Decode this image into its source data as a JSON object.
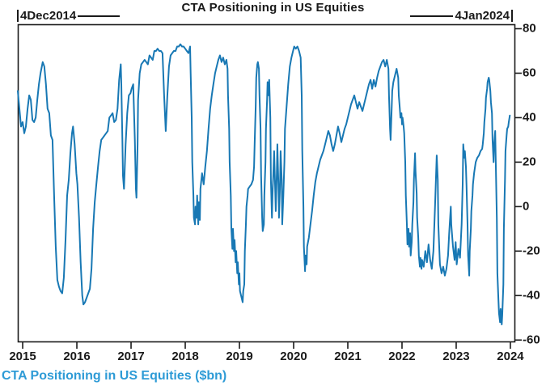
{
  "chart_data": {
    "type": "line",
    "title": "CTA Positioning in US Equities",
    "caption": "CTA Positioning in US Equities ($bn)",
    "series_name": "CTA Positioning in US Equities ($bn)",
    "unit": "$bn",
    "annotations": {
      "start": "4Dec2014",
      "end": "4Jan2024"
    },
    "x_ticks": [
      2015,
      2016,
      2017,
      2018,
      2019,
      2020,
      2021,
      2022,
      2023,
      2024
    ],
    "y_ticks": [
      80,
      60,
      40,
      20,
      0,
      -20,
      -40,
      -60
    ],
    "xlim": [
      2014.91,
      2024.09
    ],
    "ylim": [
      -61,
      82
    ],
    "grid": false,
    "legend": "none",
    "line_color": "#1878b4",
    "caption_color": "#2e9bd6",
    "axis_color": "#1a1a1a",
    "points": [
      [
        2014.91,
        52
      ],
      [
        2014.94,
        44
      ],
      [
        2014.97,
        36
      ],
      [
        2015.0,
        38
      ],
      [
        2015.03,
        33
      ],
      [
        2015.06,
        36
      ],
      [
        2015.09,
        44
      ],
      [
        2015.12,
        50
      ],
      [
        2015.15,
        48
      ],
      [
        2015.18,
        39
      ],
      [
        2015.21,
        38
      ],
      [
        2015.24,
        40
      ],
      [
        2015.27,
        48
      ],
      [
        2015.3,
        55
      ],
      [
        2015.33,
        60
      ],
      [
        2015.37,
        65
      ],
      [
        2015.4,
        63
      ],
      [
        2015.43,
        55
      ],
      [
        2015.46,
        44
      ],
      [
        2015.49,
        42
      ],
      [
        2015.52,
        32
      ],
      [
        2015.55,
        30
      ],
      [
        2015.58,
        5
      ],
      [
        2015.61,
        -18
      ],
      [
        2015.64,
        -33
      ],
      [
        2015.67,
        -36
      ],
      [
        2015.7,
        -38
      ],
      [
        2015.73,
        -39
      ],
      [
        2015.76,
        -32
      ],
      [
        2015.79,
        -15
      ],
      [
        2015.82,
        5
      ],
      [
        2015.85,
        12
      ],
      [
        2015.88,
        24
      ],
      [
        2015.91,
        33
      ],
      [
        2015.93,
        36
      ],
      [
        2015.96,
        28
      ],
      [
        2015.99,
        15
      ],
      [
        2016.01,
        10
      ],
      [
        2016.04,
        -5
      ],
      [
        2016.07,
        -25
      ],
      [
        2016.1,
        -40
      ],
      [
        2016.12,
        -44
      ],
      [
        2016.15,
        -43
      ],
      [
        2016.18,
        -41
      ],
      [
        2016.21,
        -39
      ],
      [
        2016.24,
        -37
      ],
      [
        2016.27,
        -28
      ],
      [
        2016.3,
        -10
      ],
      [
        2016.33,
        2
      ],
      [
        2016.36,
        10
      ],
      [
        2016.39,
        18
      ],
      [
        2016.42,
        25
      ],
      [
        2016.45,
        30
      ],
      [
        2016.48,
        31
      ],
      [
        2016.51,
        32
      ],
      [
        2016.54,
        33
      ],
      [
        2016.57,
        34
      ],
      [
        2016.6,
        40
      ],
      [
        2016.63,
        41
      ],
      [
        2016.66,
        42
      ],
      [
        2016.69,
        38
      ],
      [
        2016.72,
        39
      ],
      [
        2016.75,
        44
      ],
      [
        2016.78,
        57
      ],
      [
        2016.81,
        64
      ],
      [
        2016.82,
        55
      ],
      [
        2016.84,
        30
      ],
      [
        2016.85,
        14
      ],
      [
        2016.87,
        8
      ],
      [
        2016.9,
        28
      ],
      [
        2016.93,
        42
      ],
      [
        2016.96,
        50
      ],
      [
        2016.99,
        51
      ],
      [
        2017.01,
        53
      ],
      [
        2017.04,
        55
      ],
      [
        2017.07,
        30
      ],
      [
        2017.09,
        8
      ],
      [
        2017.1,
        4
      ],
      [
        2017.12,
        28
      ],
      [
        2017.13,
        48
      ],
      [
        2017.16,
        60
      ],
      [
        2017.19,
        64
      ],
      [
        2017.22,
        65
      ],
      [
        2017.25,
        66
      ],
      [
        2017.28,
        65
      ],
      [
        2017.31,
        64
      ],
      [
        2017.34,
        68
      ],
      [
        2017.37,
        67
      ],
      [
        2017.4,
        66
      ],
      [
        2017.43,
        70
      ],
      [
        2017.46,
        70
      ],
      [
        2017.49,
        71
      ],
      [
        2017.52,
        70
      ],
      [
        2017.55,
        70
      ],
      [
        2017.58,
        69
      ],
      [
        2017.61,
        50
      ],
      [
        2017.64,
        34
      ],
      [
        2017.67,
        50
      ],
      [
        2017.7,
        63
      ],
      [
        2017.73,
        68
      ],
      [
        2017.76,
        69
      ],
      [
        2017.79,
        70
      ],
      [
        2017.82,
        70
      ],
      [
        2017.85,
        72
      ],
      [
        2017.88,
        72
      ],
      [
        2017.91,
        73
      ],
      [
        2017.94,
        72
      ],
      [
        2017.97,
        72
      ],
      [
        2018.0,
        71
      ],
      [
        2018.03,
        70
      ],
      [
        2018.06,
        69
      ],
      [
        2018.09,
        72
      ],
      [
        2018.1,
        60
      ],
      [
        2018.12,
        40
      ],
      [
        2018.13,
        20
      ],
      [
        2018.15,
        5
      ],
      [
        2018.16,
        -5
      ],
      [
        2018.18,
        -8
      ],
      [
        2018.19,
        0
      ],
      [
        2018.21,
        -5
      ],
      [
        2018.22,
        5
      ],
      [
        2018.24,
        -8
      ],
      [
        2018.25,
        2
      ],
      [
        2018.27,
        -6
      ],
      [
        2018.28,
        8
      ],
      [
        2018.31,
        15
      ],
      [
        2018.34,
        10
      ],
      [
        2018.37,
        18
      ],
      [
        2018.4,
        25
      ],
      [
        2018.43,
        35
      ],
      [
        2018.46,
        44
      ],
      [
        2018.49,
        50
      ],
      [
        2018.52,
        55
      ],
      [
        2018.55,
        60
      ],
      [
        2018.58,
        63
      ],
      [
        2018.61,
        66
      ],
      [
        2018.64,
        68
      ],
      [
        2018.67,
        65
      ],
      [
        2018.7,
        67
      ],
      [
        2018.73,
        64
      ],
      [
        2018.76,
        66
      ],
      [
        2018.78,
        62
      ],
      [
        2018.79,
        50
      ],
      [
        2018.81,
        35
      ],
      [
        2018.82,
        20
      ],
      [
        2018.84,
        5
      ],
      [
        2018.85,
        -10
      ],
      [
        2018.87,
        -19
      ],
      [
        2018.88,
        -10
      ],
      [
        2018.9,
        -20
      ],
      [
        2018.91,
        -15
      ],
      [
        2018.93,
        -25
      ],
      [
        2018.94,
        -20
      ],
      [
        2018.96,
        -30
      ],
      [
        2018.97,
        -25
      ],
      [
        2018.99,
        -35
      ],
      [
        2019.0,
        -30
      ],
      [
        2019.01,
        -38
      ],
      [
        2019.04,
        -41
      ],
      [
        2019.06,
        -43
      ],
      [
        2019.07,
        -38
      ],
      [
        2019.09,
        -35
      ],
      [
        2019.1,
        -20
      ],
      [
        2019.12,
        -8
      ],
      [
        2019.13,
        0
      ],
      [
        2019.15,
        5
      ],
      [
        2019.16,
        8
      ],
      [
        2019.19,
        9
      ],
      [
        2019.22,
        10
      ],
      [
        2019.25,
        12
      ],
      [
        2019.27,
        18
      ],
      [
        2019.28,
        28
      ],
      [
        2019.3,
        45
      ],
      [
        2019.31,
        58
      ],
      [
        2019.33,
        64
      ],
      [
        2019.34,
        65
      ],
      [
        2019.36,
        62
      ],
      [
        2019.37,
        50
      ],
      [
        2019.39,
        35
      ],
      [
        2019.4,
        14
      ],
      [
        2019.42,
        -5
      ],
      [
        2019.43,
        -11
      ],
      [
        2019.45,
        -8
      ],
      [
        2019.46,
        5
      ],
      [
        2019.48,
        20
      ],
      [
        2019.49,
        35
      ],
      [
        2019.51,
        48
      ],
      [
        2019.52,
        56
      ],
      [
        2019.54,
        50
      ],
      [
        2019.55,
        57
      ],
      [
        2019.57,
        40
      ],
      [
        2019.58,
        12
      ],
      [
        2019.6,
        -5
      ],
      [
        2019.61,
        5
      ],
      [
        2019.63,
        18
      ],
      [
        2019.64,
        25
      ],
      [
        2019.66,
        8
      ],
      [
        2019.67,
        -2
      ],
      [
        2019.69,
        15
      ],
      [
        2019.7,
        28
      ],
      [
        2019.72,
        10
      ],
      [
        2019.73,
        -5
      ],
      [
        2019.75,
        10
      ],
      [
        2019.76,
        25
      ],
      [
        2019.78,
        12
      ],
      [
        2019.79,
        -8
      ],
      [
        2019.81,
        5
      ],
      [
        2019.83,
        20
      ],
      [
        2019.84,
        35
      ],
      [
        2019.87,
        45
      ],
      [
        2019.9,
        55
      ],
      [
        2019.93,
        63
      ],
      [
        2019.96,
        67
      ],
      [
        2019.99,
        70
      ],
      [
        2020.01,
        72
      ],
      [
        2020.04,
        71
      ],
      [
        2020.07,
        72
      ],
      [
        2020.1,
        70
      ],
      [
        2020.13,
        67
      ],
      [
        2020.15,
        50
      ],
      [
        2020.16,
        25
      ],
      [
        2020.18,
        0
      ],
      [
        2020.19,
        -18
      ],
      [
        2020.21,
        -29
      ],
      [
        2020.22,
        -22
      ],
      [
        2020.24,
        -26
      ],
      [
        2020.25,
        -18
      ],
      [
        2020.28,
        -14
      ],
      [
        2020.31,
        -8
      ],
      [
        2020.34,
        -2
      ],
      [
        2020.37,
        5
      ],
      [
        2020.4,
        11
      ],
      [
        2020.43,
        15
      ],
      [
        2020.46,
        18
      ],
      [
        2020.49,
        21
      ],
      [
        2020.52,
        23
      ],
      [
        2020.55,
        25
      ],
      [
        2020.58,
        28
      ],
      [
        2020.61,
        31
      ],
      [
        2020.64,
        34
      ],
      [
        2020.67,
        32
      ],
      [
        2020.7,
        28
      ],
      [
        2020.73,
        25
      ],
      [
        2020.76,
        28
      ],
      [
        2020.79,
        32
      ],
      [
        2020.82,
        36
      ],
      [
        2020.85,
        33
      ],
      [
        2020.88,
        29
      ],
      [
        2020.91,
        32
      ],
      [
        2020.94,
        35
      ],
      [
        2020.97,
        37
      ],
      [
        2021.0,
        40
      ],
      [
        2021.03,
        43
      ],
      [
        2021.06,
        46
      ],
      [
        2021.09,
        48
      ],
      [
        2021.12,
        50
      ],
      [
        2021.15,
        47
      ],
      [
        2021.18,
        44
      ],
      [
        2021.21,
        47
      ],
      [
        2021.24,
        45
      ],
      [
        2021.27,
        43
      ],
      [
        2021.3,
        46
      ],
      [
        2021.33,
        49
      ],
      [
        2021.36,
        52
      ],
      [
        2021.39,
        55
      ],
      [
        2021.42,
        57
      ],
      [
        2021.45,
        53
      ],
      [
        2021.48,
        57
      ],
      [
        2021.51,
        54
      ],
      [
        2021.54,
        58
      ],
      [
        2021.57,
        61
      ],
      [
        2021.6,
        63
      ],
      [
        2021.63,
        65
      ],
      [
        2021.66,
        66
      ],
      [
        2021.69,
        63
      ],
      [
        2021.72,
        66
      ],
      [
        2021.75,
        62
      ],
      [
        2021.76,
        50
      ],
      [
        2021.78,
        35
      ],
      [
        2021.79,
        30
      ],
      [
        2021.81,
        45
      ],
      [
        2021.82,
        52
      ],
      [
        2021.84,
        56
      ],
      [
        2021.87,
        59
      ],
      [
        2021.9,
        62
      ],
      [
        2021.93,
        58
      ],
      [
        2021.94,
        50
      ],
      [
        2021.96,
        44
      ],
      [
        2021.97,
        40
      ],
      [
        2021.99,
        42
      ],
      [
        2022.0,
        37
      ],
      [
        2022.01,
        40
      ],
      [
        2022.03,
        36
      ],
      [
        2022.04,
        33
      ],
      [
        2022.06,
        20
      ],
      [
        2022.07,
        5
      ],
      [
        2022.09,
        -8
      ],
      [
        2022.1,
        -17
      ],
      [
        2022.12,
        -10
      ],
      [
        2022.13,
        -18
      ],
      [
        2022.15,
        -12
      ],
      [
        2022.16,
        -22
      ],
      [
        2022.18,
        -16
      ],
      [
        2022.19,
        -8
      ],
      [
        2022.21,
        2
      ],
      [
        2022.22,
        12
      ],
      [
        2022.24,
        24
      ],
      [
        2022.25,
        16
      ],
      [
        2022.27,
        6
      ],
      [
        2022.28,
        -5
      ],
      [
        2022.3,
        -14
      ],
      [
        2022.31,
        -22
      ],
      [
        2022.33,
        -27
      ],
      [
        2022.34,
        -23
      ],
      [
        2022.36,
        -28
      ],
      [
        2022.37,
        -24
      ],
      [
        2022.4,
        -27
      ],
      [
        2022.43,
        -20
      ],
      [
        2022.46,
        -25
      ],
      [
        2022.49,
        -17
      ],
      [
        2022.52,
        -24
      ],
      [
        2022.55,
        -28
      ],
      [
        2022.58,
        -20
      ],
      [
        2022.61,
        0
      ],
      [
        2022.64,
        23
      ],
      [
        2022.66,
        12
      ],
      [
        2022.67,
        -8
      ],
      [
        2022.69,
        -20
      ],
      [
        2022.7,
        -26
      ],
      [
        2022.73,
        -30
      ],
      [
        2022.76,
        -27
      ],
      [
        2022.79,
        -31
      ],
      [
        2022.82,
        -28
      ],
      [
        2022.85,
        -22
      ],
      [
        2022.87,
        -12
      ],
      [
        2022.9,
        0
      ],
      [
        2022.91,
        -8
      ],
      [
        2022.94,
        -18
      ],
      [
        2022.97,
        -24
      ],
      [
        2022.99,
        -16
      ],
      [
        2023.01,
        -26
      ],
      [
        2023.04,
        -19
      ],
      [
        2023.07,
        -23
      ],
      [
        2023.1,
        -8
      ],
      [
        2023.12,
        10
      ],
      [
        2023.13,
        28
      ],
      [
        2023.15,
        22
      ],
      [
        2023.16,
        25
      ],
      [
        2023.18,
        18
      ],
      [
        2023.19,
        10
      ],
      [
        2023.21,
        -8
      ],
      [
        2023.22,
        -22
      ],
      [
        2023.24,
        -31
      ],
      [
        2023.25,
        -20
      ],
      [
        2023.27,
        -10
      ],
      [
        2023.28,
        -2
      ],
      [
        2023.3,
        5
      ],
      [
        2023.31,
        10
      ],
      [
        2023.33,
        15
      ],
      [
        2023.36,
        20
      ],
      [
        2023.39,
        22
      ],
      [
        2023.42,
        23
      ],
      [
        2023.45,
        25
      ],
      [
        2023.48,
        26
      ],
      [
        2023.49,
        28
      ],
      [
        2023.51,
        33
      ],
      [
        2023.52,
        38
      ],
      [
        2023.54,
        44
      ],
      [
        2023.55,
        49
      ],
      [
        2023.57,
        53
      ],
      [
        2023.58,
        56
      ],
      [
        2023.6,
        58
      ],
      [
        2023.61,
        57
      ],
      [
        2023.63,
        52
      ],
      [
        2023.64,
        47
      ],
      [
        2023.66,
        42
      ],
      [
        2023.67,
        30
      ],
      [
        2023.69,
        20
      ],
      [
        2023.7,
        28
      ],
      [
        2023.72,
        34
      ],
      [
        2023.73,
        20
      ],
      [
        2023.75,
        -5
      ],
      [
        2023.76,
        -30
      ],
      [
        2023.78,
        -42
      ],
      [
        2023.79,
        -48
      ],
      [
        2023.81,
        -52
      ],
      [
        2023.82,
        -46
      ],
      [
        2023.84,
        -53
      ],
      [
        2023.85,
        -49
      ],
      [
        2023.87,
        -35
      ],
      [
        2023.88,
        -10
      ],
      [
        2023.9,
        12
      ],
      [
        2023.91,
        25
      ],
      [
        2023.93,
        32
      ],
      [
        2023.94,
        35
      ],
      [
        2023.96,
        36
      ],
      [
        2023.97,
        38
      ],
      [
        2023.99,
        41
      ]
    ]
  }
}
